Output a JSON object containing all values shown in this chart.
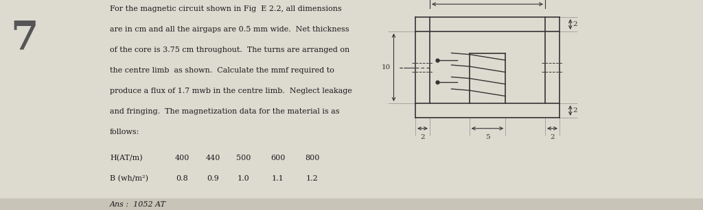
{
  "bg_color": "#c8c4b8",
  "paper_color": "#dddad0",
  "fig_width": 10.24,
  "fig_height": 3.07,
  "number_text": "7",
  "number_fontsize": 42,
  "body_text_lines": [
    "For the magnetic circuit shown in Fig  E 2.2, all dimensions",
    "are in cm and all the airgaps are 0.5 mm wide.  Net thickness",
    "of the core is 3.75 cm throughout.  The turns are arranged on",
    "the centre limb  as shown.  Calculate the mmf required to",
    "produce a flux of 1.7 mwb in the centre limb.  Neglect leakage",
    "and fringing.  The magnetization data for the material is as",
    "follows:"
  ],
  "body_fontsize": 8.0,
  "table_h_label": "H(AT/m)",
  "table_b_label": "B (wh/m²)",
  "table_h_values": [
    "400",
    "440",
    "500",
    "600",
    "800"
  ],
  "table_b_values": [
    "0.8",
    "0.9",
    "1.0",
    "1.1",
    "1.2"
  ],
  "table_fontsize": 8.0,
  "ans_text": "Ans :  1052 AT",
  "ans_fontsize": 8.0,
  "line_color": "#333333",
  "dim_color": "#333333"
}
